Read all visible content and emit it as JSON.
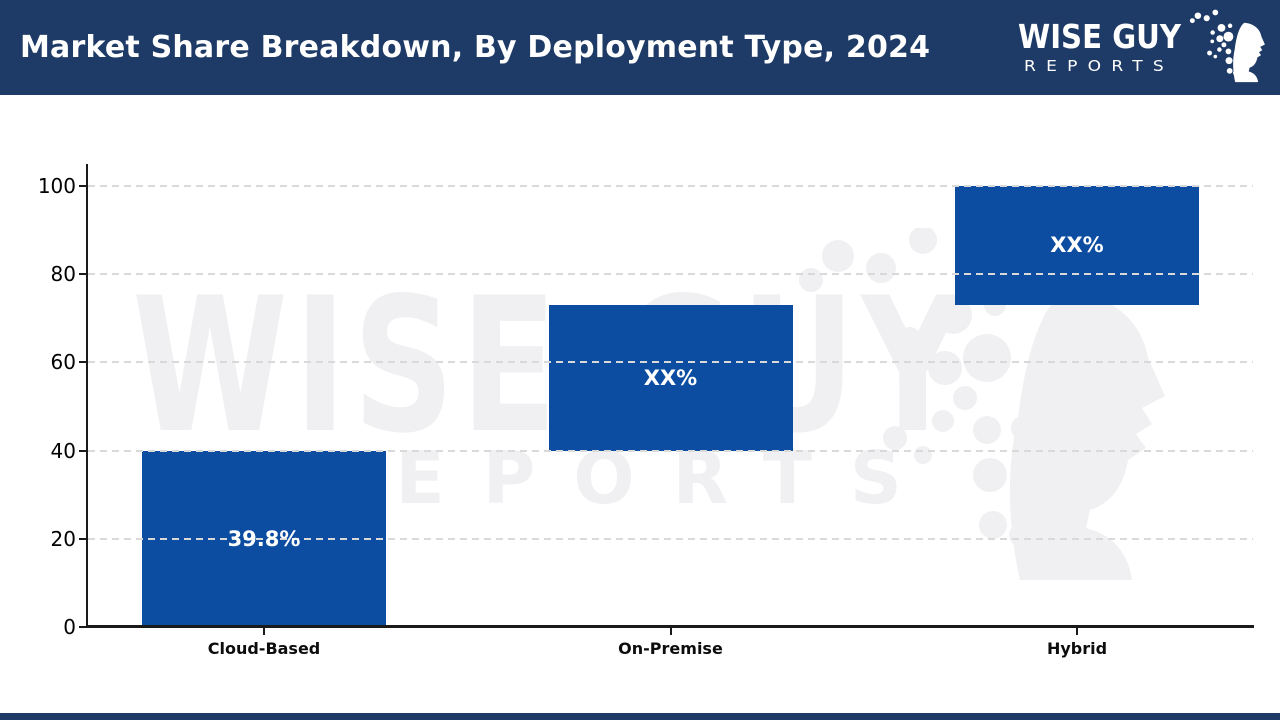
{
  "header": {
    "title": "Market Share Breakdown, By Deployment Type, 2024",
    "logo": {
      "line1": "WISE GUY",
      "line2": "REPORTS"
    }
  },
  "watermark": {
    "line1": "WISE GUY",
    "line2": "REPORTS"
  },
  "chart_data": {
    "type": "bar",
    "subtype": "waterfall-cumulative",
    "title": "Market Share Breakdown, By Deployment Type, 2024",
    "categories": [
      "Cloud-Based",
      "On-Premise",
      "Hybrid"
    ],
    "segments": [
      {
        "category": "Cloud-Based",
        "label": "39.8%",
        "start": 0,
        "end": 39.8
      },
      {
        "category": "On-Premise",
        "label": "XX%",
        "start": 39.8,
        "end": 73.1
      },
      {
        "category": "Hybrid",
        "label": "XX%",
        "start": 73.1,
        "end": 100
      }
    ],
    "yticks": [
      0,
      20,
      40,
      60,
      80,
      100
    ],
    "ylim": [
      0,
      104.8
    ],
    "xlabel": "",
    "ylabel": "",
    "grid": "dashed-horizontal",
    "legend": "none",
    "bar_color": "#0C4DA2",
    "bar_label_color": "#ffffff"
  },
  "colors": {
    "header_bg": "#1E3A66",
    "footer_bg": "#1E3A66",
    "grid": "#D9D9D9",
    "axis": "#1a1a1a",
    "watermark": "#F0F0F2",
    "background": "#FFFFFF"
  }
}
